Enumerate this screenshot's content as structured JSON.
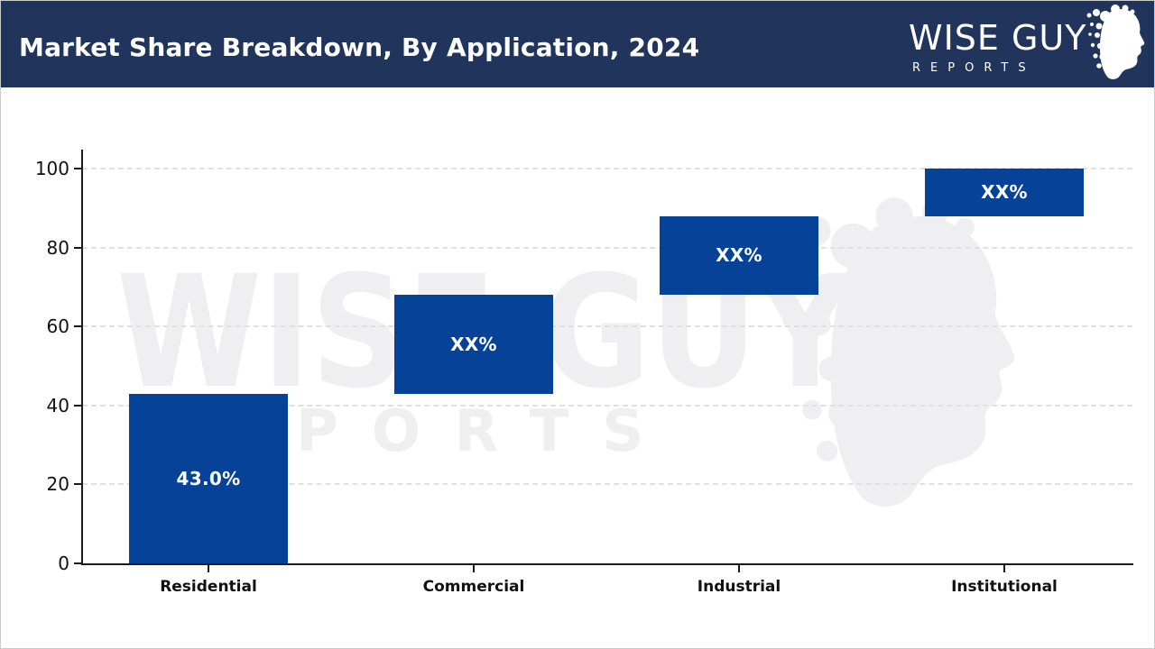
{
  "header": {
    "title": "Market Share Breakdown, By Application, 2024"
  },
  "logo": {
    "line1": "WISE GUY",
    "line2": "REPORTS"
  },
  "watermark": {
    "line1": "WISE GUY",
    "line2": "REPORTS"
  },
  "colors": {
    "header_bg": "#20345c",
    "bar": "#064298",
    "grid": "#e0e0e0",
    "axis": "#1a1a1a",
    "bar_label": "#ffffff",
    "watermark": "#efeff1"
  },
  "chart_data": {
    "type": "bar",
    "subtype": "cumulative-waterfall",
    "title": "Market Share Breakdown, By Application, 2024",
    "categories": [
      "Residential",
      "Commercial",
      "Industrial",
      "Institutional"
    ],
    "segments": [
      {
        "category": "Residential",
        "start": 0,
        "end": 43,
        "value": 43.0,
        "label": "43.0%"
      },
      {
        "category": "Commercial",
        "start": 43,
        "end": 68,
        "value": 25,
        "label": "XX%"
      },
      {
        "category": "Industrial",
        "start": 68,
        "end": 88,
        "value": 20,
        "label": "XX%"
      },
      {
        "category": "Institutional",
        "start": 88,
        "end": 100,
        "value": 12,
        "label": "XX%"
      }
    ],
    "yticks": [
      0,
      20,
      40,
      60,
      80,
      100
    ],
    "ylim": [
      0,
      104
    ],
    "xlabel": "",
    "ylabel": "",
    "grid": "dashed-horizontal",
    "legend": false
  }
}
